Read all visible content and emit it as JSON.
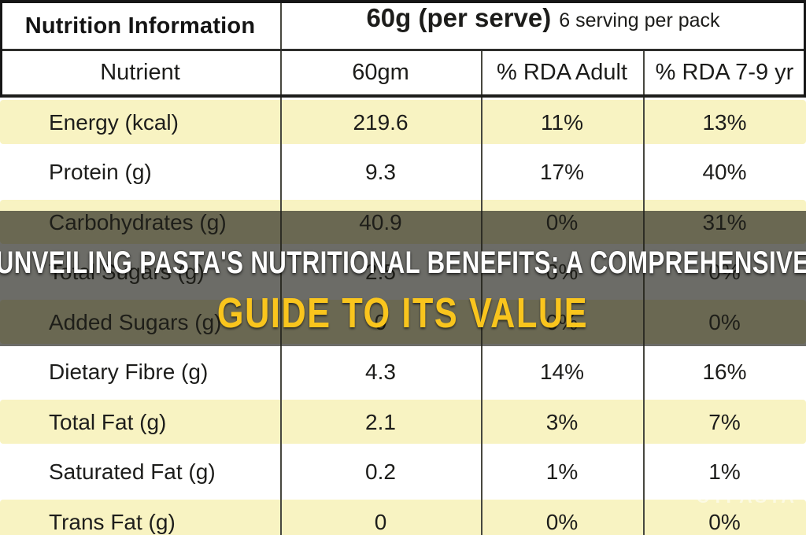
{
  "table": {
    "title": "Nutrition Information",
    "serve_size": "60g (per serve)",
    "servings_note": "6 serving per pack",
    "columns": [
      "Nutrient",
      "60gm",
      "% RDA Adult",
      "% RDA 7-9 yr"
    ],
    "rows": [
      {
        "nutrient": "Energy (kcal)",
        "amount": "219.6",
        "rda_adult": "11%",
        "rda_child": "13%"
      },
      {
        "nutrient": "Protein (g)",
        "amount": "9.3",
        "rda_adult": "17%",
        "rda_child": "40%"
      },
      {
        "nutrient": "Carbohydrates (g)",
        "amount": "40.9",
        "rda_adult": "0%",
        "rda_child": "31%"
      },
      {
        "nutrient": "Total Sugars (g)",
        "amount": "2.5",
        "rda_adult": "0%",
        "rda_child": "0%"
      },
      {
        "nutrient": "Added Sugars (g)",
        "amount": "0",
        "rda_adult": "0%",
        "rda_child": "0%"
      },
      {
        "nutrient": "Dietary Fibre (g)",
        "amount": "4.3",
        "rda_adult": "14%",
        "rda_child": "16%"
      },
      {
        "nutrient": "Total Fat (g)",
        "amount": "2.1",
        "rda_adult": "3%",
        "rda_child": "7%"
      },
      {
        "nutrient": "Saturated Fat (g)",
        "amount": "0.2",
        "rda_adult": "1%",
        "rda_child": "1%"
      },
      {
        "nutrient": "Trans Fat (g)",
        "amount": "0",
        "rda_adult": "0%",
        "rda_child": "0%"
      }
    ]
  },
  "overlay": {
    "title_line1": "UNVEILING PASTA'S NUTRITIONAL BENEFITS: A COMPREHENSIVE",
    "title_line2": "GUIDE TO ITS VALUE"
  },
  "watermark": "CYPASTA",
  "colors": {
    "stripe_yellow": "#F8F3C2",
    "overlay_dark": "rgba(32,32,25,0.66)",
    "title_gold": "#F9C51D",
    "border_black": "#161616"
  }
}
